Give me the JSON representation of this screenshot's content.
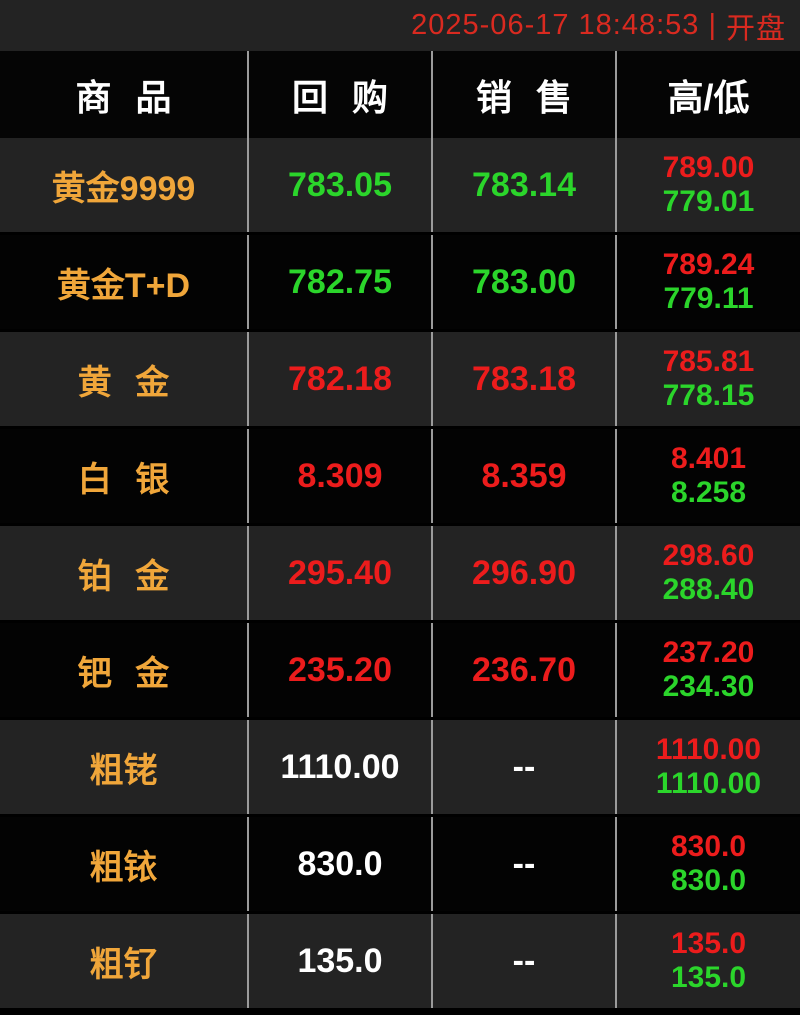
{
  "topbar": {
    "timestamp": "2025-06-17 18:48:53",
    "separator": "|",
    "status": "开盘"
  },
  "colors": {
    "red": "#ec1c1c",
    "green": "#2bd52b",
    "gold": "#f0a63a",
    "white": "#ffffff",
    "topbar-red": "#d92a20",
    "row-gray": "#232323",
    "row-black": "#030303",
    "line": "#9b9b9b"
  },
  "table": {
    "headers": {
      "product": "商 品",
      "buyback": "回 购",
      "sale": "销 售",
      "high_low": "高/低"
    },
    "rows": [
      {
        "product": "黄金9999",
        "buyback": "783.05",
        "sale": "783.14",
        "high": "789.00",
        "low": "779.01",
        "value_color": "green"
      },
      {
        "product": "黄金T+D",
        "buyback": "782.75",
        "sale": "783.00",
        "high": "789.24",
        "low": "779.11",
        "value_color": "green"
      },
      {
        "product": "黄 金",
        "buyback": "782.18",
        "sale": "783.18",
        "high": "785.81",
        "low": "778.15",
        "value_color": "red"
      },
      {
        "product": "白 银",
        "buyback": "8.309",
        "sale": "8.359",
        "high": "8.401",
        "low": "8.258",
        "value_color": "red"
      },
      {
        "product": "铂 金",
        "buyback": "295.40",
        "sale": "296.90",
        "high": "298.60",
        "low": "288.40",
        "value_color": "red"
      },
      {
        "product": "钯 金",
        "buyback": "235.20",
        "sale": "236.70",
        "high": "237.20",
        "low": "234.30",
        "value_color": "red"
      },
      {
        "product": "粗铑",
        "buyback": "1110.00",
        "sale": "--",
        "high": "1110.00",
        "low": "1110.00",
        "value_color": "white"
      },
      {
        "product": "粗铱",
        "buyback": "830.0",
        "sale": "--",
        "high": "830.0",
        "low": "830.0",
        "value_color": "white"
      },
      {
        "product": "粗钌",
        "buyback": "135.0",
        "sale": "--",
        "high": "135.0",
        "low": "135.0",
        "value_color": "white"
      }
    ]
  }
}
